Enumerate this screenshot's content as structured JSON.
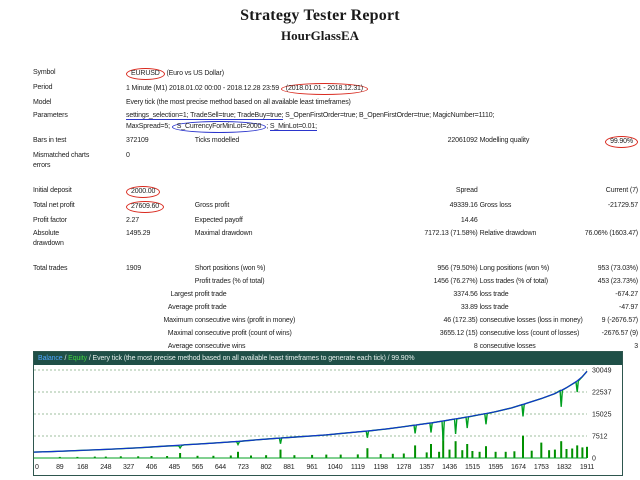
{
  "title": "Strategy Tester Report",
  "subtitle": "HourGlassEA",
  "colors": {
    "annotation_red": "#d92a1f",
    "annotation_blue": "#2b35cc",
    "chart_header_bg": "#1f4f47",
    "chart_border": "#2e564e",
    "grid_color": "#9fbf9f",
    "balance_color": "#1133cc",
    "equity_color": "#00a020",
    "lots_color": "#009000"
  },
  "report": {
    "rows": [
      {
        "cells": [
          {
            "t": "Symbol"
          },
          {
            "span": 5,
            "segs": [
              {
                "t": "EURUSD",
                "cls": "oval oval-red"
              },
              {
                "t": " (Euro vs US Dollar)"
              }
            ]
          }
        ]
      },
      {
        "cells": [
          {
            "t": "Period"
          },
          {
            "span": 5,
            "segs": [
              {
                "t": "1 Minute (M1) 2018.01.02 00:00 - 2018.12.28 23:59 "
              },
              {
                "t": "(2018.01.01 - 2018.12.31)",
                "cls": "oval oval-red"
              }
            ]
          }
        ]
      },
      {
        "cells": [
          {
            "t": "Model"
          },
          {
            "span": 5,
            "t": "Every tick (the most precise method based on all available least timeframes)"
          }
        ]
      },
      {
        "cells": [
          {
            "t": "Parameters"
          },
          {
            "span": 5,
            "cls": "params",
            "segs": [
              {
                "t": "settings_selection=1; TradeSell=true; TradeBuy=true;",
                "cls": "u-blue"
              },
              {
                "t": " S_OpenFirstOrder=true; B_OpenFirstOrder=true; MagicNumber=1110;"
              },
              {
                "br": true
              },
              {
                "t": "MaxSpread=5; "
              },
              {
                "t": "S_CurrencyForMinLot=2000",
                "cls": "u-blue oval oval-blue"
              },
              {
                "t": "; "
              },
              {
                "t": "S_MinLot=0.01;",
                "cls": "u-blue"
              }
            ]
          }
        ]
      },
      {
        "cells": [
          {
            "t": "Bars in test"
          },
          {
            "t": "372109"
          },
          {
            "t": "Ticks modelled"
          },
          {
            "t": "22061092",
            "cls": "r"
          },
          {
            "t": "Modelling quality"
          },
          {
            "cls": "r",
            "segs": [
              {
                "t": "99.90%",
                "cls": "oval oval-red"
              }
            ]
          }
        ]
      },
      {
        "cells": [
          {
            "t": "Mismatched charts\nerrors",
            "cls": "wrap"
          },
          {
            "t": "0"
          },
          {
            "span": 4,
            "t": ""
          }
        ]
      },
      {
        "spacer": true
      },
      {
        "cells": [
          {
            "t": "Initial deposit"
          },
          {
            "segs": [
              {
                "t": "2000.00",
                "cls": "oval oval-red"
              }
            ]
          },
          {
            "t": ""
          },
          {
            "t": "Spread",
            "cls": "r"
          },
          {
            "t": ""
          },
          {
            "t": "Current (7)",
            "cls": "r"
          }
        ]
      },
      {
        "cells": [
          {
            "t": "Total net profit"
          },
          {
            "segs": [
              {
                "t": "27609.60",
                "cls": "oval oval-red"
              }
            ]
          },
          {
            "t": "Gross profit"
          },
          {
            "t": "49339.16",
            "cls": "r"
          },
          {
            "t": "Gross loss"
          },
          {
            "t": "-21729.57",
            "cls": "r"
          }
        ]
      },
      {
        "cells": [
          {
            "t": "Profit factor"
          },
          {
            "t": "2.27"
          },
          {
            "t": "Expected payoff"
          },
          {
            "t": "14.46",
            "cls": "r"
          },
          {
            "t": ""
          },
          {
            "t": ""
          }
        ]
      },
      {
        "cells": [
          {
            "t": "Absolute\ndrawdown",
            "cls": "wrap"
          },
          {
            "t": "1495.29"
          },
          {
            "t": "Maximal drawdown"
          },
          {
            "t": "7172.13 (71.58%)",
            "cls": "r"
          },
          {
            "t": "Relative drawdown"
          },
          {
            "t": "76.06% (1603.47)",
            "cls": "r"
          }
        ]
      },
      {
        "spacer": true
      },
      {
        "cells": [
          {
            "t": "Total trades"
          },
          {
            "t": "1909"
          },
          {
            "t": "Short positions (won %)"
          },
          {
            "t": "956 (79.50%)",
            "cls": "r"
          },
          {
            "t": "Long positions (won %)"
          },
          {
            "t": "953 (73.03%)",
            "cls": "r"
          }
        ]
      },
      {
        "cells": [
          {
            "t": ""
          },
          {
            "t": ""
          },
          {
            "t": "Profit trades (% of total)"
          },
          {
            "t": "1456 (76.27%)",
            "cls": "r"
          },
          {
            "t": "Loss trades (% of total)"
          },
          {
            "t": "453 (23.73%)",
            "cls": "r"
          }
        ]
      },
      {
        "cells": [
          {
            "t": ""
          },
          {
            "t": "Largest",
            "cls": "r"
          },
          {
            "t": "profit trade"
          },
          {
            "t": "3374.56",
            "cls": "r"
          },
          {
            "t": "loss trade"
          },
          {
            "t": "-674.27",
            "cls": "r"
          }
        ]
      },
      {
        "cells": [
          {
            "t": ""
          },
          {
            "t": "Average",
            "cls": "r"
          },
          {
            "t": "profit trade"
          },
          {
            "t": "33.89",
            "cls": "r"
          },
          {
            "t": "loss trade"
          },
          {
            "t": "-47.97",
            "cls": "r"
          }
        ]
      },
      {
        "cells": [
          {
            "t": ""
          },
          {
            "t": "Maximum",
            "cls": "r"
          },
          {
            "t": "consecutive wins (profit in money)"
          },
          {
            "t": "46 (172.35)",
            "cls": "r"
          },
          {
            "t": "consecutive losses (loss in money)"
          },
          {
            "t": "9 (-2676.57)",
            "cls": "r"
          }
        ]
      },
      {
        "cells": [
          {
            "t": ""
          },
          {
            "t": "Maximal",
            "cls": "r"
          },
          {
            "t": "consecutive profit (count of wins)"
          },
          {
            "t": "3655.12 (15)",
            "cls": "r"
          },
          {
            "t": "consecutive loss (count of losses)"
          },
          {
            "t": "-2676.57 (9)",
            "cls": "r"
          }
        ]
      },
      {
        "cells": [
          {
            "t": ""
          },
          {
            "t": "Average",
            "cls": "r"
          },
          {
            "t": "consecutive wins"
          },
          {
            "t": "8",
            "cls": "r"
          },
          {
            "t": "consecutive losses"
          },
          {
            "t": "3",
            "cls": "r"
          }
        ]
      }
    ]
  },
  "chart_data": {
    "type": "line",
    "title": "Balance / Equity / Every tick (the most precise method based on all available least timeframes to generate each tick) / 99.90%",
    "legend": [
      {
        "t": "Balance",
        "color": "#4da6ff"
      },
      {
        "t": " / ",
        "color": "#e6efec"
      },
      {
        "t": "Equity",
        "color": "#3fd23f"
      },
      {
        "t": " / Every tick (the most precise method based on all available least timeframes to generate each tick) / 99.90%",
        "color": "#e6efec"
      }
    ],
    "xlim": [
      0,
      1911
    ],
    "ylim": [
      0,
      30049
    ],
    "x_ticks": [
      0,
      89,
      168,
      248,
      327,
      406,
      485,
      565,
      644,
      723,
      802,
      881,
      961,
      1040,
      1119,
      1198,
      1278,
      1357,
      1436,
      1515,
      1595,
      1674,
      1753,
      1832,
      1911
    ],
    "y_ticks": [
      0,
      7512,
      15025,
      22537,
      30049
    ],
    "series": [
      {
        "name": "Balance",
        "points": [
          [
            0,
            2000
          ],
          [
            60,
            2200
          ],
          [
            120,
            2420
          ],
          [
            180,
            2650
          ],
          [
            248,
            2950
          ],
          [
            300,
            3180
          ],
          [
            360,
            3500
          ],
          [
            406,
            3750
          ],
          [
            460,
            4100
          ],
          [
            520,
            4500
          ],
          [
            565,
            4750
          ],
          [
            620,
            5100
          ],
          [
            680,
            5500
          ],
          [
            723,
            5800
          ],
          [
            780,
            6300
          ],
          [
            830,
            6650
          ],
          [
            881,
            7000
          ],
          [
            930,
            7350
          ],
          [
            961,
            7550
          ],
          [
            1010,
            7900
          ],
          [
            1060,
            8350
          ],
          [
            1119,
            8900
          ],
          [
            1170,
            9400
          ],
          [
            1220,
            9950
          ],
          [
            1278,
            10700
          ],
          [
            1330,
            11400
          ],
          [
            1380,
            12100
          ],
          [
            1436,
            13000
          ],
          [
            1490,
            13900
          ],
          [
            1540,
            14800
          ],
          [
            1595,
            15800
          ],
          [
            1650,
            17100
          ],
          [
            1700,
            18600
          ],
          [
            1753,
            20300
          ],
          [
            1800,
            22000
          ],
          [
            1840,
            24000
          ],
          [
            1875,
            26200
          ],
          [
            1895,
            27800
          ],
          [
            1911,
            29610
          ]
        ]
      },
      {
        "name": "Equity",
        "points": [
          [
            0,
            2000
          ],
          [
            60,
            2200
          ],
          [
            120,
            2420
          ],
          [
            180,
            2650
          ],
          [
            248,
            2950
          ],
          [
            300,
            3180
          ],
          [
            360,
            3500
          ],
          [
            406,
            3750
          ],
          [
            460,
            4100
          ],
          [
            500,
            4200
          ],
          [
            505,
            3400
          ],
          [
            510,
            4250
          ],
          [
            520,
            4500
          ],
          [
            565,
            4750
          ],
          [
            620,
            5100
          ],
          [
            680,
            5500
          ],
          [
            700,
            5600
          ],
          [
            705,
            4600
          ],
          [
            710,
            5650
          ],
          [
            723,
            5800
          ],
          [
            780,
            6300
          ],
          [
            830,
            6650
          ],
          [
            848,
            6800
          ],
          [
            852,
            4900
          ],
          [
            856,
            6850
          ],
          [
            881,
            7000
          ],
          [
            930,
            7350
          ],
          [
            961,
            7550
          ],
          [
            1010,
            7900
          ],
          [
            1060,
            8350
          ],
          [
            1119,
            8900
          ],
          [
            1148,
            9150
          ],
          [
            1152,
            6900
          ],
          [
            1156,
            9200
          ],
          [
            1170,
            9400
          ],
          [
            1220,
            9950
          ],
          [
            1278,
            10700
          ],
          [
            1313,
            11200
          ],
          [
            1317,
            8400
          ],
          [
            1321,
            11250
          ],
          [
            1330,
            11400
          ],
          [
            1368,
            11950
          ],
          [
            1372,
            8700
          ],
          [
            1376,
            12000
          ],
          [
            1380,
            12100
          ],
          [
            1410,
            12550
          ],
          [
            1414,
            5800
          ],
          [
            1418,
            12650
          ],
          [
            1436,
            13000
          ],
          [
            1453,
            13300
          ],
          [
            1457,
            8200
          ],
          [
            1461,
            13350
          ],
          [
            1490,
            13900
          ],
          [
            1493,
            13980
          ],
          [
            1497,
            10200
          ],
          [
            1501,
            14030
          ],
          [
            1540,
            14800
          ],
          [
            1558,
            15100
          ],
          [
            1562,
            11500
          ],
          [
            1566,
            15150
          ],
          [
            1595,
            15800
          ],
          [
            1650,
            17100
          ],
          [
            1686,
            18200
          ],
          [
            1690,
            14200
          ],
          [
            1694,
            18300
          ],
          [
            1700,
            18600
          ],
          [
            1753,
            20300
          ],
          [
            1800,
            22000
          ],
          [
            1818,
            23000
          ],
          [
            1822,
            17500
          ],
          [
            1826,
            23200
          ],
          [
            1840,
            24000
          ],
          [
            1873,
            26000
          ],
          [
            1877,
            22500
          ],
          [
            1881,
            26300
          ],
          [
            1895,
            27800
          ],
          [
            1911,
            29610
          ]
        ]
      }
    ],
    "lots_bars_relative_height": [
      [
        89,
        0.04
      ],
      [
        150,
        0.04
      ],
      [
        210,
        0.05
      ],
      [
        248,
        0.05
      ],
      [
        300,
        0.06
      ],
      [
        360,
        0.06
      ],
      [
        406,
        0.07
      ],
      [
        460,
        0.07
      ],
      [
        505,
        0.18
      ],
      [
        565,
        0.08
      ],
      [
        620,
        0.08
      ],
      [
        680,
        0.09
      ],
      [
        705,
        0.22
      ],
      [
        750,
        0.09
      ],
      [
        802,
        0.1
      ],
      [
        852,
        0.3
      ],
      [
        900,
        0.1
      ],
      [
        961,
        0.11
      ],
      [
        1010,
        0.12
      ],
      [
        1060,
        0.12
      ],
      [
        1119,
        0.13
      ],
      [
        1152,
        0.35
      ],
      [
        1198,
        0.14
      ],
      [
        1240,
        0.15
      ],
      [
        1278,
        0.16
      ],
      [
        1317,
        0.45
      ],
      [
        1357,
        0.2
      ],
      [
        1372,
        0.5
      ],
      [
        1400,
        0.22
      ],
      [
        1414,
        0.95
      ],
      [
        1436,
        0.3
      ],
      [
        1457,
        0.6
      ],
      [
        1480,
        0.28
      ],
      [
        1497,
        0.5
      ],
      [
        1515,
        0.25
      ],
      [
        1540,
        0.22
      ],
      [
        1562,
        0.42
      ],
      [
        1595,
        0.22
      ],
      [
        1630,
        0.22
      ],
      [
        1660,
        0.24
      ],
      [
        1690,
        0.8
      ],
      [
        1720,
        0.26
      ],
      [
        1753,
        0.55
      ],
      [
        1780,
        0.28
      ],
      [
        1800,
        0.3
      ],
      [
        1822,
        0.6
      ],
      [
        1840,
        0.32
      ],
      [
        1860,
        0.34
      ],
      [
        1877,
        0.45
      ],
      [
        1895,
        0.38
      ],
      [
        1911,
        0.4
      ]
    ]
  }
}
